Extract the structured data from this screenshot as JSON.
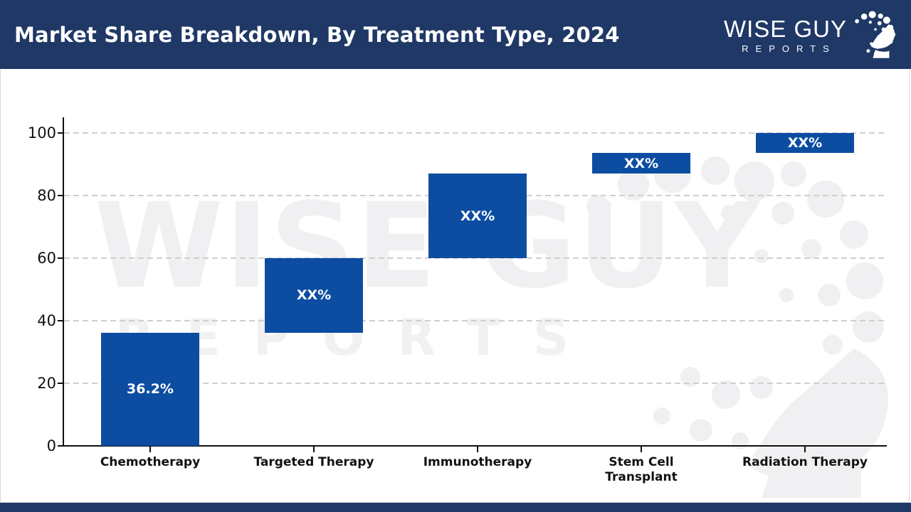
{
  "header": {
    "title": "Market Share Breakdown, By Treatment Type, 2024",
    "logo": {
      "line1": "WISE GUY",
      "line2": "REPORTS"
    }
  },
  "watermark": {
    "line1": "WISE GUY",
    "line2": "REPORTS"
  },
  "colors": {
    "header_bg": "#1F3866",
    "bar": "#0C4DA2",
    "bar_label_text": "#FFFFFF",
    "gridline": "#CFCFCF",
    "axis": "#111111",
    "watermark": "#F0F0F2"
  },
  "chart_data": {
    "type": "bar",
    "subtype": "waterfall",
    "title": "Market Share Breakdown, By Treatment Type, 2024",
    "categories": [
      "Chemotherapy",
      "Targeted Therapy",
      "Immunotherapy",
      "Stem Cell Transplant",
      "Radiation Therapy"
    ],
    "segments": [
      {
        "category": "Chemotherapy",
        "start": 0,
        "end": 36.2,
        "label": "36.2%"
      },
      {
        "category": "Targeted Therapy",
        "start": 36.2,
        "end": 60.0,
        "label": "XX%"
      },
      {
        "category": "Immunotherapy",
        "start": 60.0,
        "end": 87.0,
        "label": "XX%"
      },
      {
        "category": "Stem Cell Transplant",
        "start": 87.0,
        "end": 93.6,
        "label": "XX%"
      },
      {
        "category": "Radiation Therapy",
        "start": 93.6,
        "end": 100.0,
        "label": "XX%"
      }
    ],
    "yticks": [
      0,
      20,
      40,
      60,
      80,
      100
    ],
    "ylim": [
      0,
      105
    ],
    "xlabel": "",
    "ylabel": "",
    "grid": true,
    "legend": "none"
  }
}
